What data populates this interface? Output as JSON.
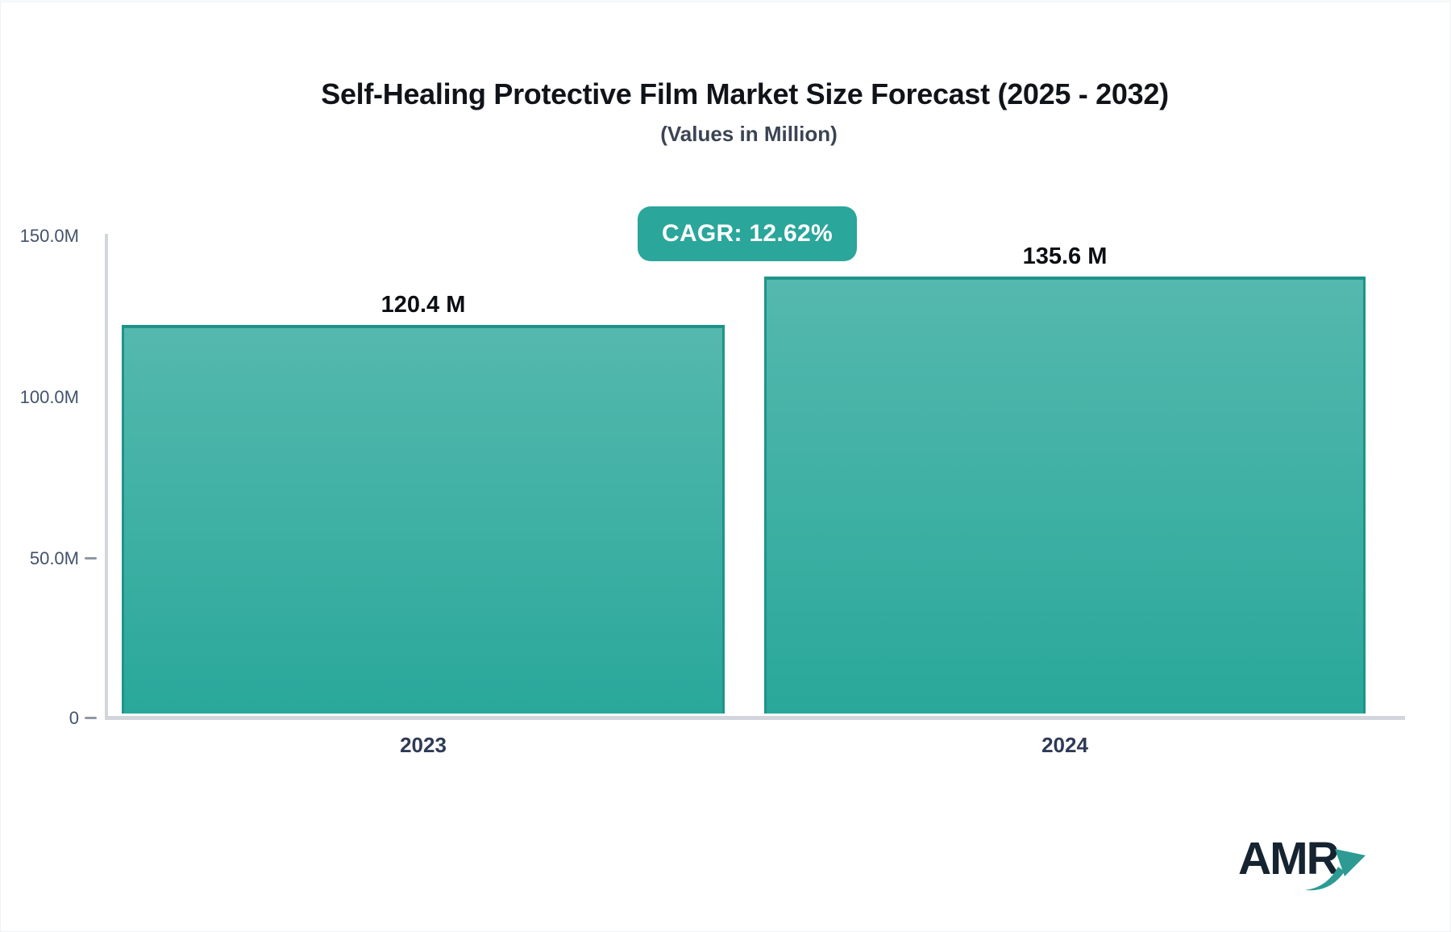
{
  "chart_data": {
    "type": "bar",
    "title": "Self-Healing Protective Film Market Size Forecast (2025 - 2032)",
    "subtitle": "(Values in Million)",
    "annotation": "CAGR: 12.62%",
    "categories": [
      "2023",
      "2024"
    ],
    "values": [
      120.4,
      135.6
    ],
    "value_labels": [
      "120.4 M",
      "135.6 M"
    ],
    "ylim": [
      0,
      150
    ],
    "ytick_labels": [
      "150.0M",
      "100.0M",
      "50.0M",
      "0"
    ],
    "xlabel": "",
    "ylabel": "",
    "legend": false,
    "grid": false
  },
  "colors": {
    "accent_teal": "#2aa69b",
    "bar_gradient_top": "#55b8ae",
    "bar_gradient_bottom": "#29a89a",
    "bar_border": "#1e9489",
    "axis_line": "#d2d6dc",
    "logo_arrow": "#2d9b93"
  },
  "logo": {
    "text": "AMR"
  }
}
